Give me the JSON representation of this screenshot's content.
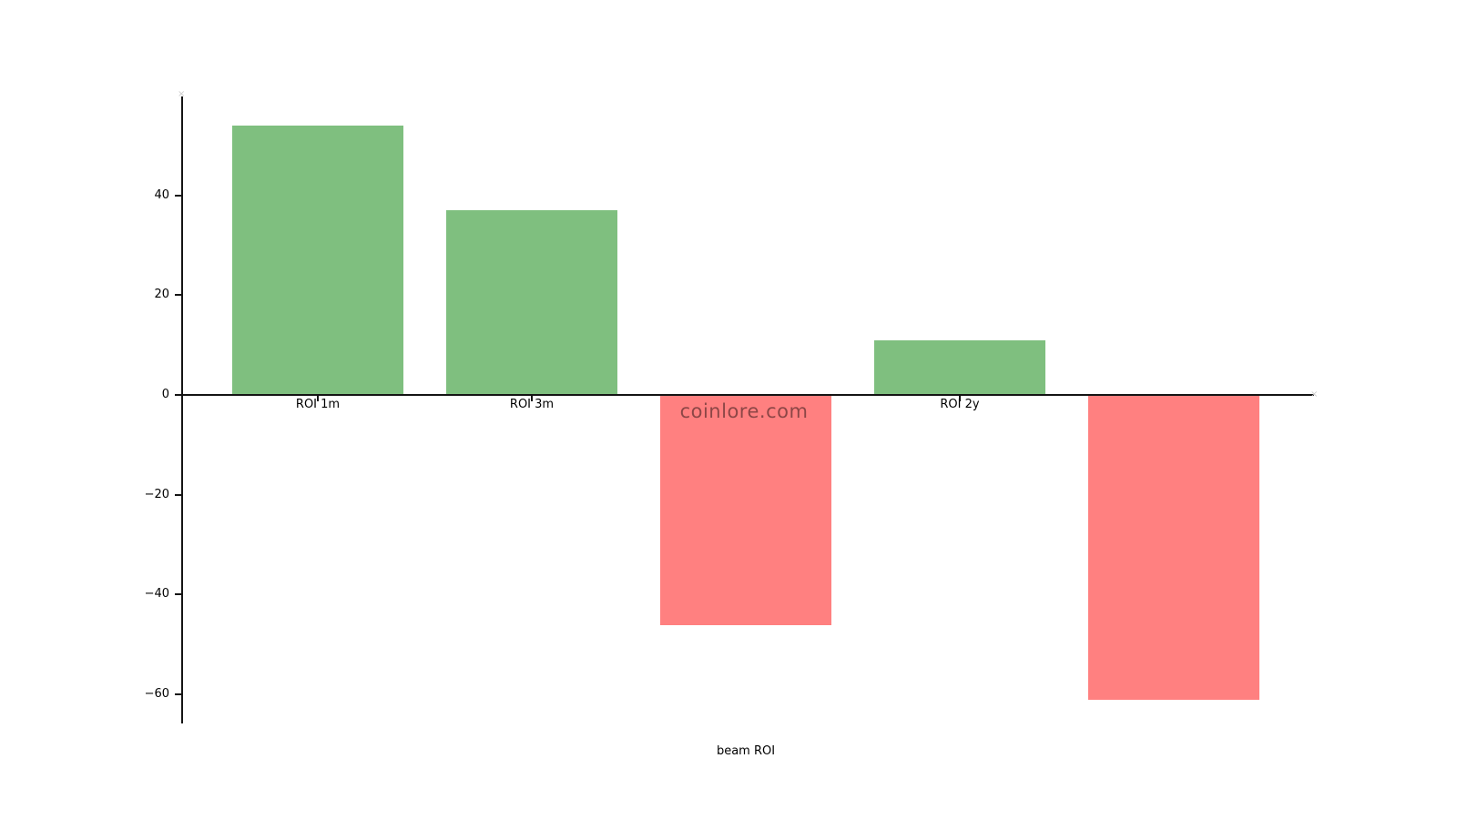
{
  "watermark": {
    "text": "coinlore.com"
  },
  "chart_data": {
    "type": "bar",
    "title": "",
    "xlabel": "beam ROI",
    "ylabel": "",
    "categories": [
      "ROI 1m",
      "ROI 3m",
      "",
      "ROI 2y",
      ""
    ],
    "values": [
      54,
      37,
      -46,
      11,
      -61
    ],
    "bar_colors": [
      "#7fbf7f",
      "#7fbf7f",
      "#ff8080",
      "#7fbf7f",
      "#ff8080"
    ],
    "positive_color": "#7fbf7f",
    "negative_color": "#ff8080",
    "axis_color": "#141414",
    "yticks": [
      40,
      20,
      0,
      -20,
      -40,
      -60
    ],
    "ytick_labels": [
      "40",
      "20",
      "0",
      "−20",
      "−40",
      "−60"
    ],
    "ylim": [
      -67,
      60
    ],
    "grid": false,
    "legend_position": "none",
    "watermark": "coinlore.com"
  }
}
